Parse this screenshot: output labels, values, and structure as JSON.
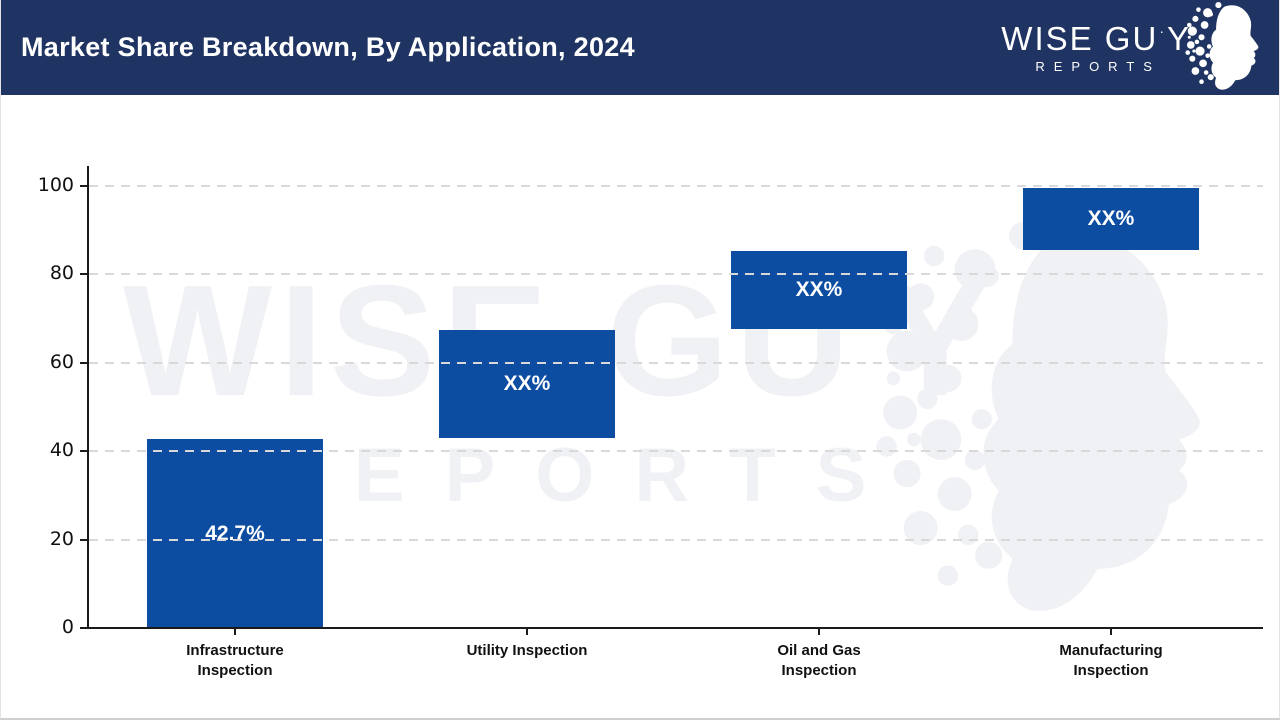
{
  "header": {
    "title": "Market Share Breakdown, By Application, 2024",
    "background": "#1f3462",
    "logo": {
      "word1": "WISE GU",
      "dot": "·",
      "word2": "Y",
      "line2": "REPORTS",
      "face_icon": "dotted-face-profile-icon"
    }
  },
  "watermark": {
    "word1": "WISE GU",
    "dot": "·",
    "word2": "Y",
    "line2": "REPORTS",
    "head_icon": "dotted-head-watermark-icon",
    "color": "#f0f1f4"
  },
  "chart_data": {
    "type": "bar",
    "subtype": "waterfall-style floating bars (cumulative market share)",
    "title": "Market Share Breakdown, By Application, 2024",
    "categories": [
      "Infrastructure\nInspection",
      "Utility Inspection",
      "Oil and Gas\nInspection",
      "Manufacturing\nInspection"
    ],
    "segments": [
      {
        "category": "Infrastructure Inspection",
        "start": 0,
        "end": 42.7,
        "label": "42.7%"
      },
      {
        "category": "Utility Inspection",
        "start": 43.0,
        "end": 67.5,
        "label": "XX%"
      },
      {
        "category": "Oil and Gas Inspection",
        "start": 67.7,
        "end": 85.2,
        "label": "XX%"
      },
      {
        "category": "Manufacturing Inspection",
        "start": 85.5,
        "end": 99.6,
        "label": "XX%"
      }
    ],
    "yticks": [
      0,
      20,
      40,
      60,
      80,
      100
    ],
    "ylim": [
      0,
      104
    ],
    "xlabel": "",
    "ylabel": "",
    "legend": "none",
    "grid": "dashed horizontal, drawn over bars",
    "grid_color": "#d9d9d9",
    "bar_color": "#0d4da1",
    "bar_label_color": "#ffffff",
    "axis_color": "#1a1a1a"
  }
}
